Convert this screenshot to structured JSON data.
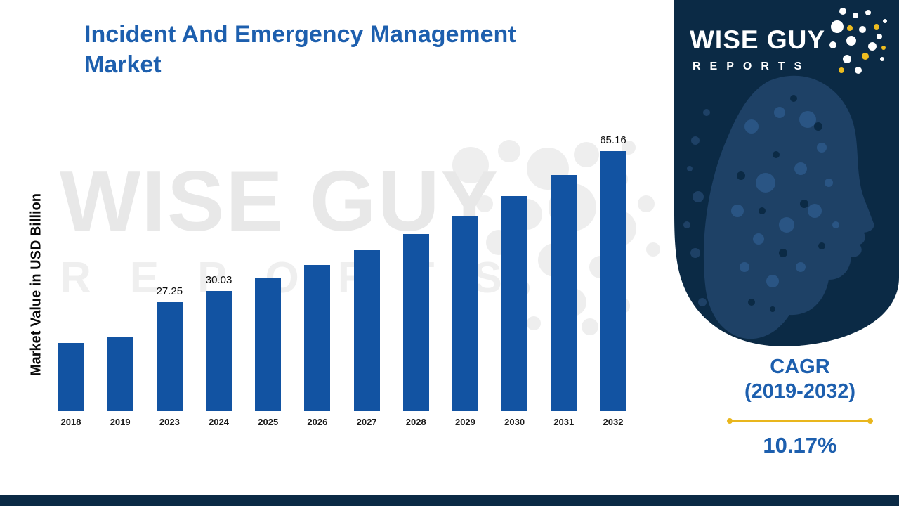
{
  "title": "Incident And Emergency Management Market",
  "y_axis_label": "Market Value in USD Billion",
  "watermark": {
    "line1": "WISE GUY",
    "line2": "REPORTS"
  },
  "logo": {
    "line1": "WISE GUY",
    "line2": "REPORTS"
  },
  "cagr": {
    "label": "CAGR",
    "range": "(2019-2032)",
    "value": "10.17%"
  },
  "colors": {
    "bar": "#1253a2",
    "accent_blue": "#1d5fae",
    "navy": "#0b2a45",
    "gold": "#e9b61d",
    "watermark_gray": "#e8e8e8"
  },
  "chart_data": {
    "type": "bar",
    "categories": [
      "2018",
      "2019",
      "2023",
      "2024",
      "2025",
      "2026",
      "2027",
      "2028",
      "2029",
      "2030",
      "2031",
      "2032"
    ],
    "values": [
      17.0,
      18.6,
      27.25,
      30.03,
      33.2,
      36.6,
      40.3,
      44.4,
      48.9,
      53.8,
      59.2,
      65.16
    ],
    "data_labels": {
      "2023": "27.25",
      "2024": "30.03",
      "2032": "65.16"
    },
    "title": "Incident And Emergency Management Market",
    "xlabel": "",
    "ylabel": "Market Value in USD Billion",
    "ylim": [
      0,
      70
    ],
    "grid": false,
    "legend": false
  }
}
